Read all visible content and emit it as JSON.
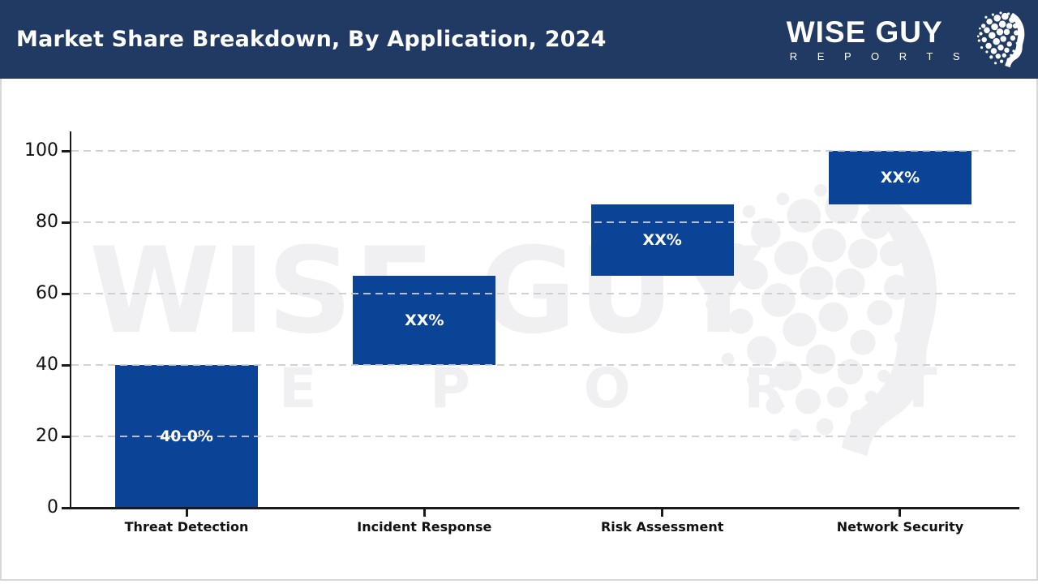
{
  "header": {
    "title": "Market Share Breakdown, By Application, 2024",
    "bg_color": "#203A64",
    "logo": {
      "line1": "WISE GUY",
      "line2": "R E P O R T S"
    }
  },
  "watermark": {
    "line1": "WISE GUY",
    "line2": "R E P O R T S",
    "color": "#F0F0F2"
  },
  "chart_data": {
    "type": "bar",
    "subtype": "waterfall",
    "title": "Market Share Breakdown, By Application, 2024",
    "categories": [
      "Threat Detection",
      "Incident Response",
      "Risk Assessment",
      "Network Security"
    ],
    "segments": [
      {
        "category": "Threat Detection",
        "start": 0,
        "end": 40,
        "value": 40,
        "label": "40.0%"
      },
      {
        "category": "Incident Response",
        "start": 40,
        "end": 65,
        "value": 25,
        "label": "XX%"
      },
      {
        "category": "Risk Assessment",
        "start": 65,
        "end": 85,
        "value": 20,
        "label": "XX%"
      },
      {
        "category": "Network Security",
        "start": 85,
        "end": 100,
        "value": 15,
        "label": "XX%"
      }
    ],
    "yticks": [
      0,
      20,
      40,
      60,
      80,
      100
    ],
    "ylim": [
      0,
      100
    ],
    "xlabel": "",
    "ylabel": "",
    "grid": "horizontal-dashed",
    "legend": "none",
    "bar_color": "#0B4397",
    "bar_label_color": "#FFFFFF",
    "axis_color": "#1a1a1a"
  }
}
